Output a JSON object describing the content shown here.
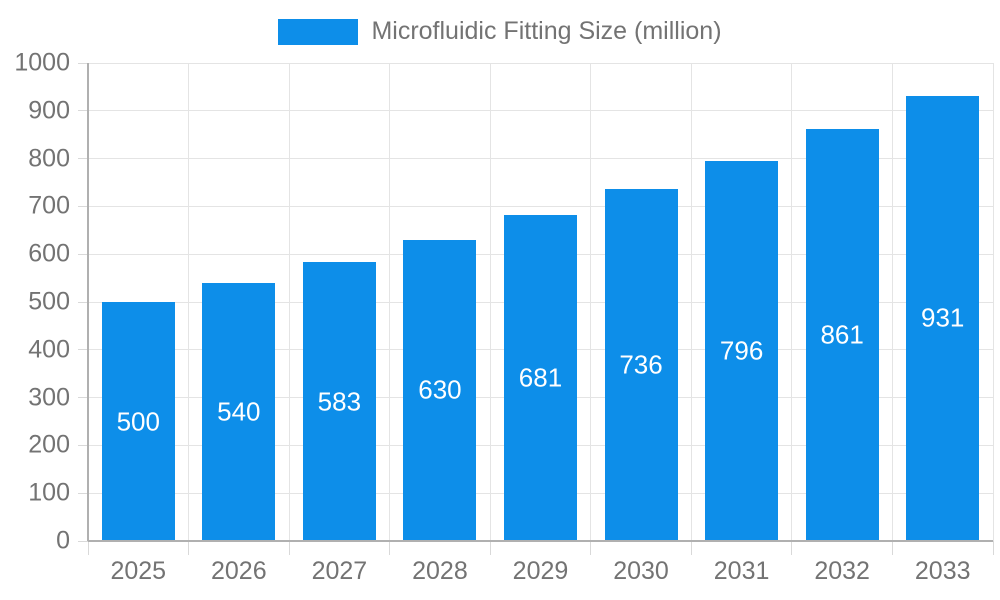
{
  "legend": {
    "label": "Microfluidic Fitting Size (million)"
  },
  "chart_data": {
    "type": "bar",
    "title": "Microfluidic Fitting Size (million)",
    "categories": [
      "2025",
      "2026",
      "2027",
      "2028",
      "2029",
      "2030",
      "2031",
      "2032",
      "2033"
    ],
    "series": [
      {
        "name": "Microfluidic Fitting Size (million)",
        "values": [
          500,
          540,
          583,
          630,
          681,
          736,
          796,
          861,
          931
        ]
      }
    ],
    "xlabel": "",
    "ylabel": "",
    "ylim": [
      0,
      1000
    ],
    "ytick_step": 100,
    "grid": true,
    "legend_position": "top",
    "bar_value_labels": "inside-center",
    "colors": {
      "bar": "#0d8ee9",
      "grid": "#e4e4e4",
      "axis": "#b0b0b0",
      "tick": "#d9d9d9",
      "text": "#737373",
      "bar_label": "#ffffff",
      "background": "#ffffff"
    }
  }
}
